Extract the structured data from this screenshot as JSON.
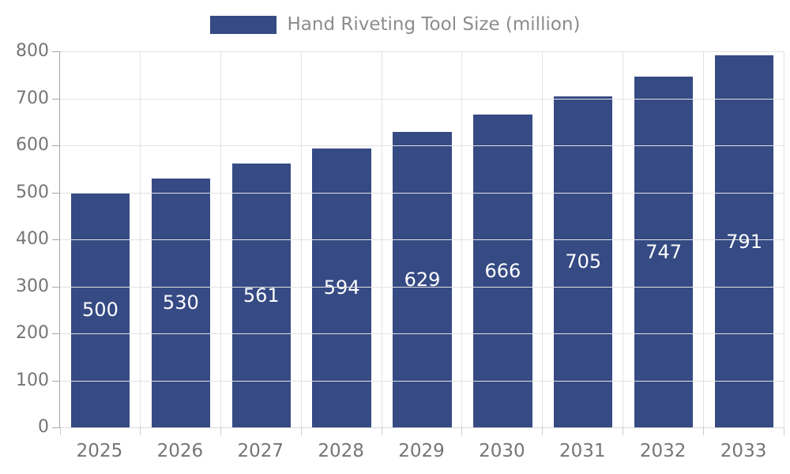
{
  "legend": {
    "label": "Hand Riveting Tool Size (million)"
  },
  "chart_data": {
    "type": "bar",
    "title": "Hand Riveting Tool Size (million)",
    "categories": [
      "2025",
      "2026",
      "2027",
      "2028",
      "2029",
      "2030",
      "2031",
      "2032",
      "2033"
    ],
    "values": [
      500,
      530,
      561,
      594,
      629,
      666,
      705,
      747,
      791
    ],
    "xlabel": "",
    "ylabel": "",
    "ylim": [
      0,
      800
    ],
    "yticks": [
      0,
      100,
      200,
      300,
      400,
      500,
      600,
      700,
      800
    ],
    "grid": true,
    "legend_position": "top-center",
    "bar_color": "#364A84",
    "value_label_color": "#ffffff",
    "axis_text_color": "#757575",
    "legend_text_color": "#8c8c8c",
    "gridline_color": "#e2e2e2"
  }
}
